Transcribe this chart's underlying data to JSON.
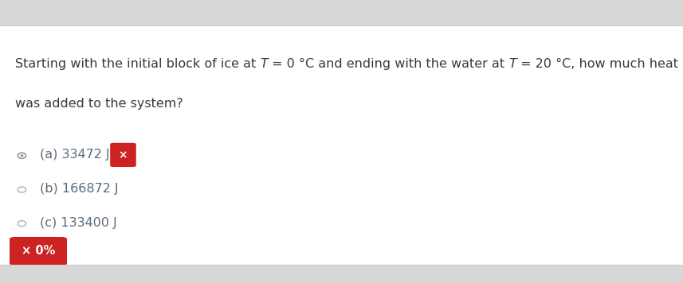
{
  "bg_color": "#e8e8e8",
  "content_bg": "#ffffff",
  "border_color": "#c8c8c8",
  "text_color": "#3a3a3a",
  "option_text_color": "#5a6a7a",
  "wrong_icon_bg": "#cc2222",
  "wrong_icon_color": "#ffffff",
  "radio_color": "#bbbbbb",
  "radio_selected_color": "#999999",
  "score_bg": "#cc2222",
  "score_text_color": "#ffffff",
  "score_label": "× 0%",
  "top_bar_color": "#d8d8d8",
  "options": [
    {
      "label": "(a) 33472 J",
      "selected": true,
      "wrong": true
    },
    {
      "label": "(b) 166872 J",
      "selected": false,
      "wrong": false
    },
    {
      "label": "(c) 133400 J",
      "selected": false,
      "wrong": false
    }
  ]
}
